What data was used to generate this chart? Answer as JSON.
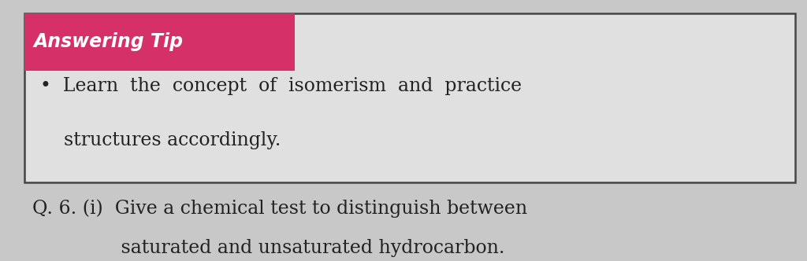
{
  "background_color": "#c8c8c8",
  "box_background": "#e0e0e0",
  "box_border_color": "#444444",
  "header_bg_color": "#d63068",
  "header_text": "Answering Tip",
  "header_text_color": "#ffffff",
  "bullet_line1": "•  Learn  the  concept  of  isomerism  and  practice",
  "bullet_line2": "    structures accordingly.",
  "question_line1": "Q. 6. (i)  Give a chemical test to distinguish between",
  "question_line2": "               saturated and unsaturated hydrocarbon.",
  "header_fontsize": 17,
  "body_fontsize": 17,
  "question_fontsize": 17,
  "text_color": "#222222",
  "fig_width": 10.24,
  "fig_height": 3.32
}
